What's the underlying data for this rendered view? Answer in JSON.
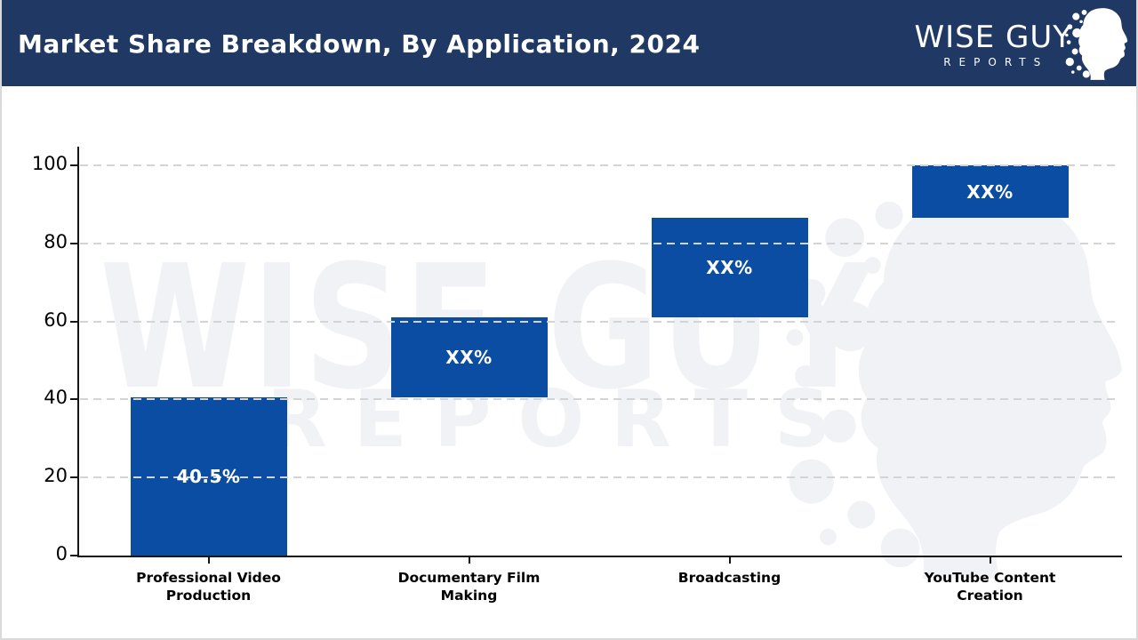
{
  "header": {
    "title": "Market Share Breakdown, By Application, 2024",
    "logo": {
      "line1": "WISE GUY",
      "line2": "REPORTS"
    }
  },
  "watermark": {
    "line1": "WISE GUY",
    "line2": "REPORTS"
  },
  "colors": {
    "header_bg": "#203864",
    "bar": "#0b4da2",
    "bar_label": "#ffffff",
    "grid": "#d4d4d4",
    "axis": "#141414",
    "watermark": "#f1f2f6",
    "page_border": "#d9d9d9"
  },
  "chart_data": {
    "type": "bar",
    "subtype": "waterfall",
    "title": "Market Share Breakdown, By Application, 2024",
    "categories": [
      "Professional Video Production",
      "Documentary Film Making",
      "Broadcasting",
      "YouTube Content Creation"
    ],
    "category_label_lines": [
      [
        "Professional Video",
        "Production"
      ],
      [
        "Documentary Film",
        "Making"
      ],
      [
        "Broadcasting"
      ],
      [
        "YouTube Content",
        "Creation"
      ]
    ],
    "segments": [
      {
        "category": "Professional Video Production",
        "start": 0,
        "end": 40.5,
        "label": "40.5%"
      },
      {
        "category": "Documentary Film Making",
        "start": 40.5,
        "end": 61,
        "label": "XX%"
      },
      {
        "category": "Broadcasting",
        "start": 61,
        "end": 86.5,
        "label": "XX%"
      },
      {
        "category": "YouTube Content Creation",
        "start": 86.5,
        "end": 100,
        "label": "XX%"
      }
    ],
    "ylim": [
      0,
      100
    ],
    "y_ticks": [
      0,
      20,
      40,
      60,
      80,
      100
    ],
    "xlabel": "",
    "ylabel": "",
    "grid": "horizontal-dashed",
    "legend": "none"
  }
}
